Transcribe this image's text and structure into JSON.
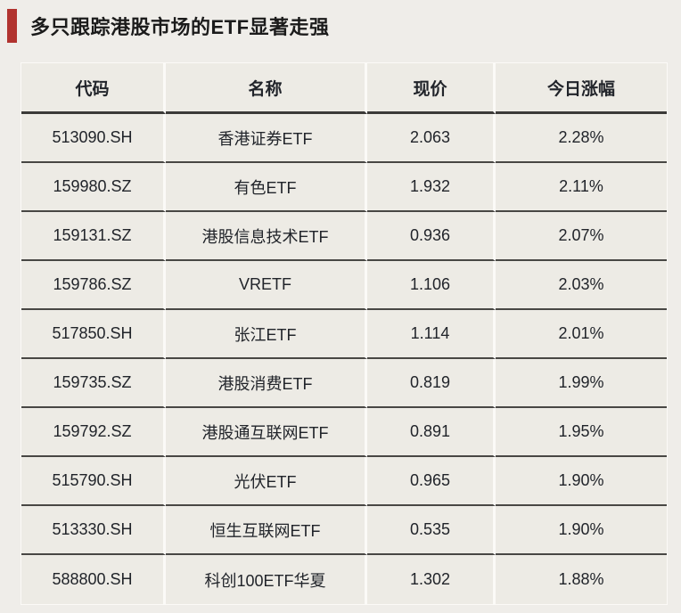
{
  "page": {
    "background_color": "#efede9",
    "accent_color": "#b1332f"
  },
  "header": {
    "title": "多只跟踪港股市场的ETF显著走强"
  },
  "table": {
    "columns": [
      "代码",
      "名称",
      "现价",
      "今日涨幅"
    ],
    "rows": [
      [
        "513090.SH",
        "香港证券ETF",
        "2.063",
        "2.28%"
      ],
      [
        "159980.SZ",
        "有色ETF",
        "1.932",
        "2.11%"
      ],
      [
        "159131.SZ",
        "港股信息技术ETF",
        "0.936",
        "2.07%"
      ],
      [
        "159786.SZ",
        "VRETF",
        "1.106",
        "2.03%"
      ],
      [
        "517850.SH",
        "张江ETF",
        "1.114",
        "2.01%"
      ],
      [
        "159735.SZ",
        "港股消费ETF",
        "0.819",
        "1.99%"
      ],
      [
        "159792.SZ",
        "港股通互联网ETF",
        "0.891",
        "1.95%"
      ],
      [
        "515790.SH",
        "光伏ETF",
        "0.965",
        "1.90%"
      ],
      [
        "513330.SH",
        "恒生互联网ETF",
        "0.535",
        "1.90%"
      ],
      [
        "588800.SH",
        "科创100ETF华夏",
        "1.302",
        "1.88%"
      ]
    ]
  },
  "chart_data": {
    "type": "table",
    "title": "多只跟踪港股市场的ETF显著走强",
    "columns": [
      "代码",
      "名称",
      "现价",
      "今日涨幅"
    ],
    "rows": [
      {
        "code": "513090.SH",
        "name": "香港证券ETF",
        "price": 2.063,
        "change_pct": "2.28%"
      },
      {
        "code": "159980.SZ",
        "name": "有色ETF",
        "price": 1.932,
        "change_pct": "2.11%"
      },
      {
        "code": "159131.SZ",
        "name": "港股信息技术ETF",
        "price": 0.936,
        "change_pct": "2.07%"
      },
      {
        "code": "159786.SZ",
        "name": "VRETF",
        "price": 1.106,
        "change_pct": "2.03%"
      },
      {
        "code": "517850.SH",
        "name": "张江ETF",
        "price": 1.114,
        "change_pct": "2.01%"
      },
      {
        "code": "159735.SZ",
        "name": "港股消费ETF",
        "price": 0.819,
        "change_pct": "1.99%"
      },
      {
        "code": "159792.SZ",
        "name": "港股通互联网ETF",
        "price": 0.891,
        "change_pct": "1.95%"
      },
      {
        "code": "515790.SH",
        "name": "光伏ETF",
        "price": 0.965,
        "change_pct": "1.90%"
      },
      {
        "code": "513330.SH",
        "name": "恒生互联网ETF",
        "price": 0.535,
        "change_pct": "1.90%"
      },
      {
        "code": "588800.SH",
        "name": "科创100ETF华夏",
        "price": 1.302,
        "change_pct": "1.88%"
      }
    ]
  }
}
